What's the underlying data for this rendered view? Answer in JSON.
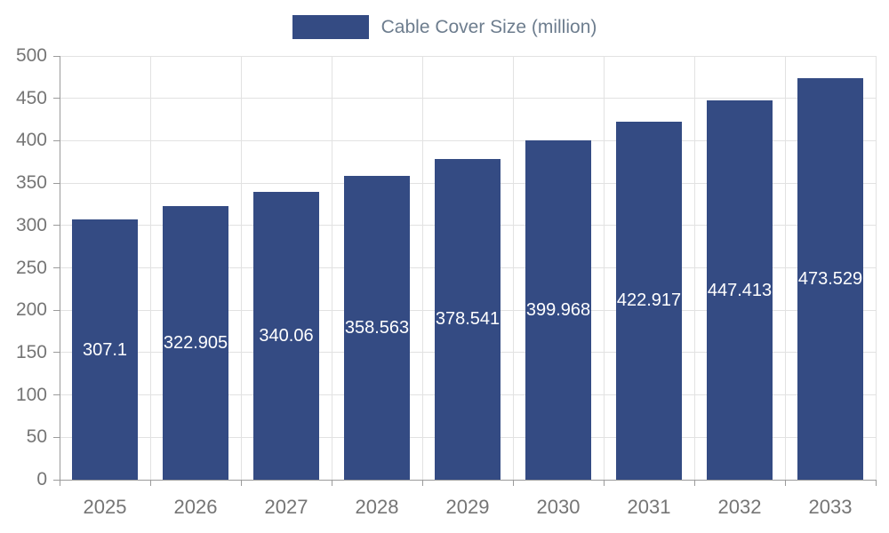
{
  "legend": {
    "label": "Cable Cover Size (million)"
  },
  "chart_data": {
    "type": "bar",
    "title": "Cable Cover Size (million)",
    "categories": [
      "2025",
      "2026",
      "2027",
      "2028",
      "2029",
      "2030",
      "2031",
      "2032",
      "2033"
    ],
    "values": [
      307.1,
      322.905,
      340.06,
      358.563,
      378.541,
      399.968,
      422.917,
      447.413,
      473.529
    ],
    "value_labels": [
      "307.1",
      "322.905",
      "340.06",
      "358.563",
      "378.541",
      "399.968",
      "422.917",
      "447.413",
      "473.529"
    ],
    "xlabel": "",
    "ylabel": "",
    "ylim": [
      0,
      500
    ],
    "yticks": [
      0,
      50,
      100,
      150,
      200,
      250,
      300,
      350,
      400,
      450,
      500
    ],
    "grid": true,
    "legend_position": "top",
    "bar_color": "#344b83",
    "value_label_color": "#ffffff",
    "axis_text_color": "#757575"
  }
}
